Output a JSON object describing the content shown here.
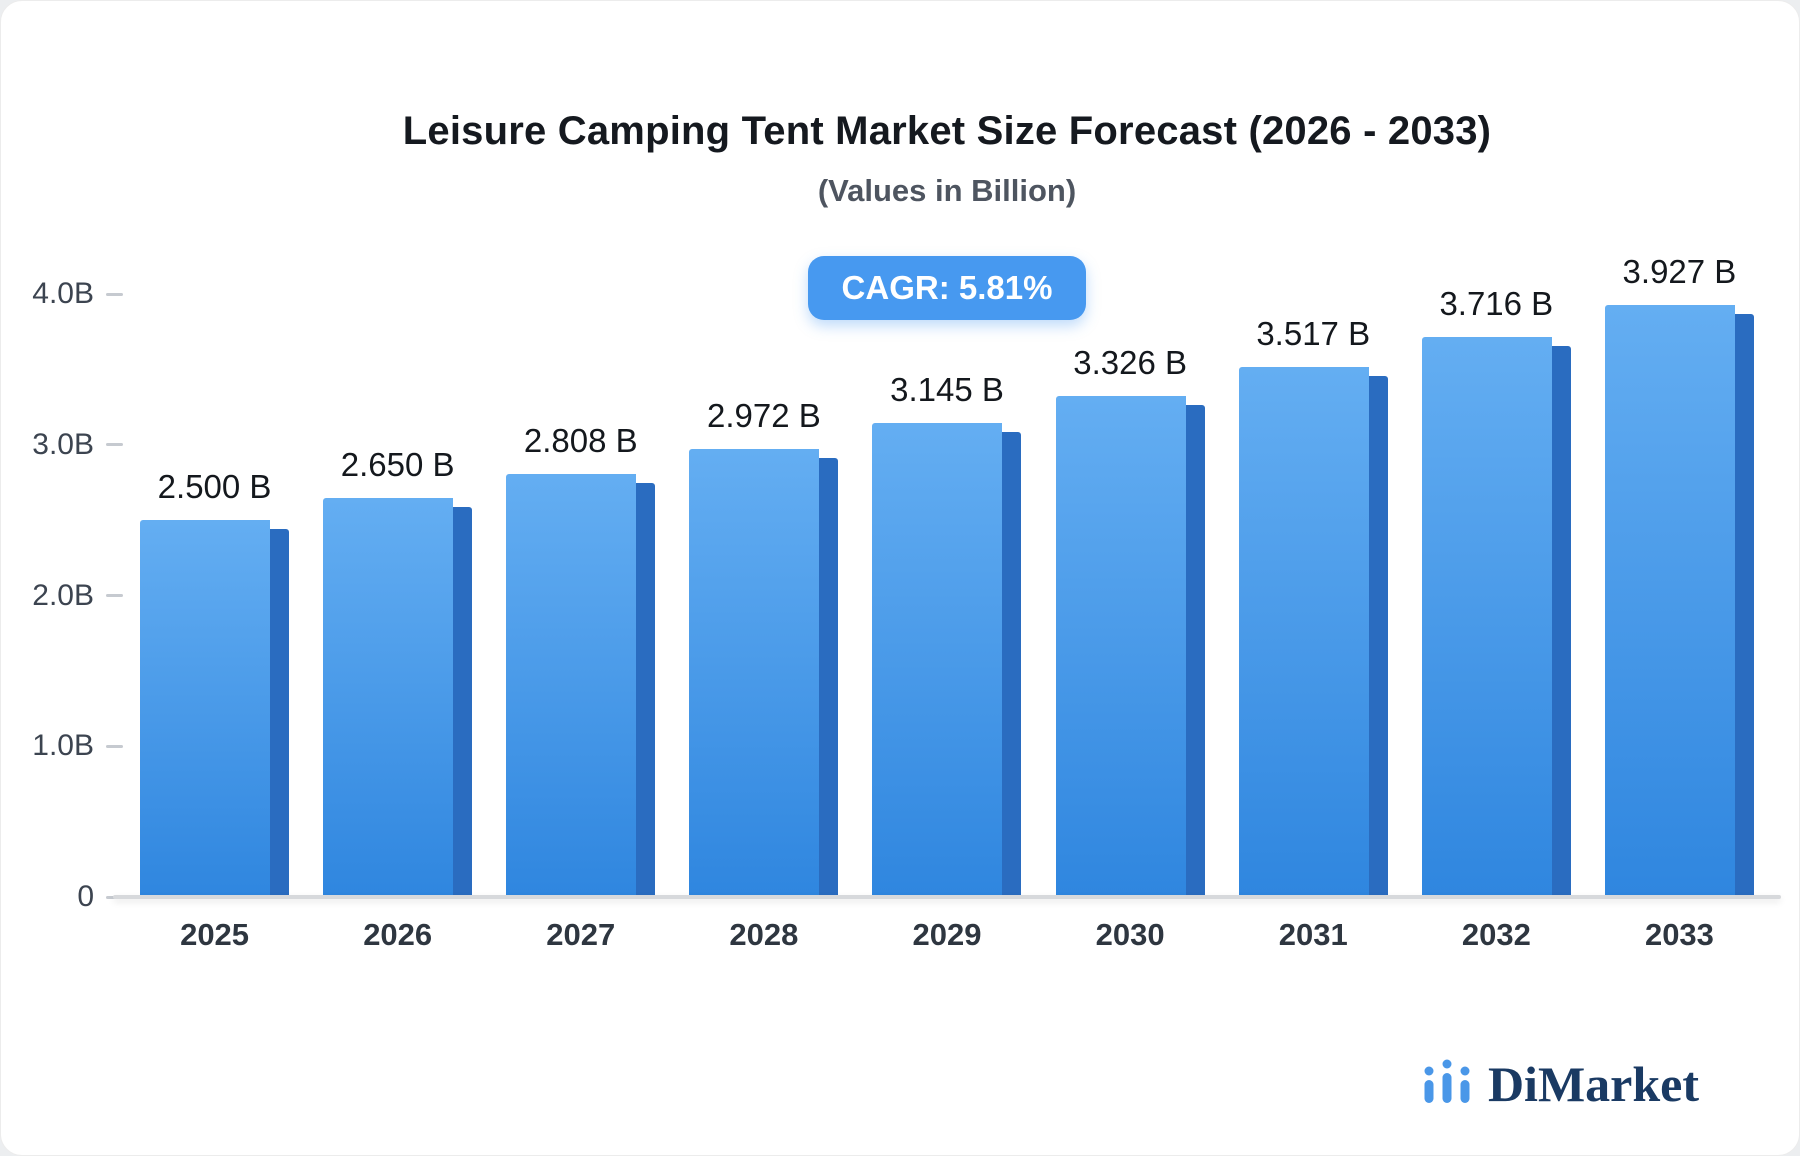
{
  "header": {
    "title": "Leisure Camping Tent Market Size Forecast (2026 - 2033)",
    "subtitle": "(Values in Billion)"
  },
  "badge": {
    "label": "CAGR: 5.81%",
    "color": "#4799f0"
  },
  "brand": {
    "name": "DiMarket",
    "icon": "bar-chart-logo-icon",
    "text_color": "#1a3a63",
    "icon_color": "#4a97e8"
  },
  "chart_data": {
    "type": "bar",
    "title": "Leisure Camping Tent Market Size Forecast (2026 - 2033)",
    "subtitle": "(Values in Billion)",
    "annotation": "CAGR: 5.81%",
    "categories": [
      "2025",
      "2026",
      "2027",
      "2028",
      "2029",
      "2030",
      "2031",
      "2032",
      "2033"
    ],
    "values": [
      2.5,
      2.65,
      2.808,
      2.972,
      3.145,
      3.326,
      3.517,
      3.716,
      3.927
    ],
    "labels": [
      "2.500 B",
      "2.650 B",
      "2.808 B",
      "2.972 B",
      "3.145 B",
      "3.326 B",
      "3.517 B",
      "3.716 B",
      "3.927 B"
    ],
    "xlabel": "",
    "ylabel": "",
    "ylim": [
      0,
      4.0
    ],
    "yticks": [
      {
        "value": 0,
        "label": "0"
      },
      {
        "value": 1.0,
        "label": "1.0B"
      },
      {
        "value": 2.0,
        "label": "2.0B"
      },
      {
        "value": 3.0,
        "label": "3.0B"
      },
      {
        "value": 4.0,
        "label": "4.0B"
      }
    ],
    "grid": false,
    "legend": false,
    "bar_color_top": "#64aef2",
    "bar_color_bottom": "#2f86df",
    "bar_side_color": "#2a6cc0"
  }
}
